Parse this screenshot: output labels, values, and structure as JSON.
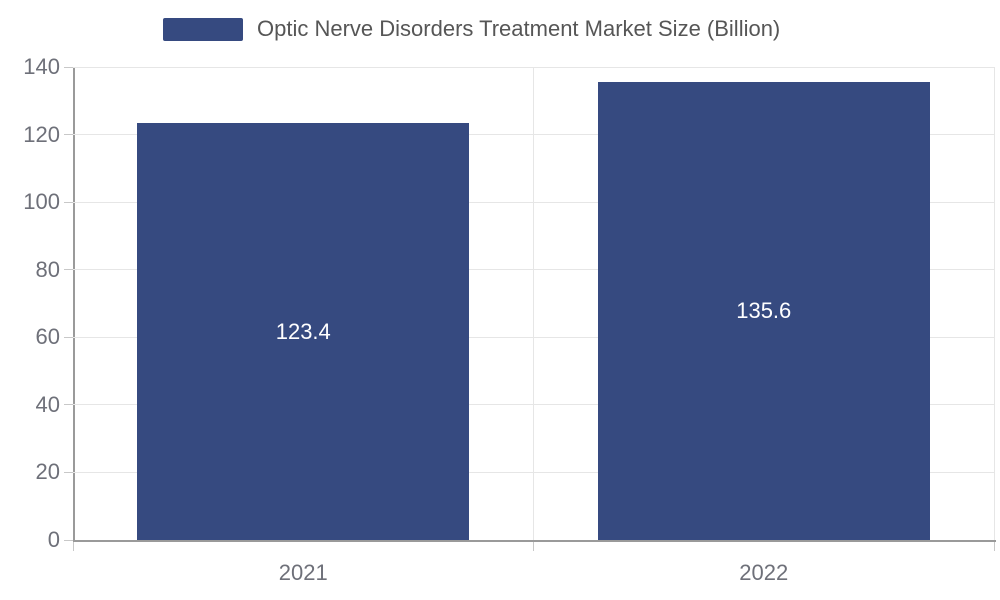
{
  "chart_data": {
    "type": "bar",
    "title": "Optic Nerve Disorders Treatment Market Size (Billion)",
    "categories": [
      "2021",
      "2022"
    ],
    "values": [
      123.4,
      135.6
    ],
    "value_labels": [
      "123.4",
      "135.6"
    ],
    "ylim": [
      0,
      140
    ],
    "yticks": [
      0,
      20,
      40,
      60,
      80,
      100,
      120,
      140
    ],
    "bar_width_fraction": 0.72,
    "legend_position": "top-center",
    "grid": true,
    "colors": {
      "bar": "#364a80",
      "label_text": "#ffffff",
      "axis_text": "#6e7079",
      "legend_text": "#565656",
      "gridline": "#e6e6e6",
      "axis_line": "#9a9a9a",
      "tick": "#c8c8c8",
      "background": "#ffffff"
    }
  }
}
